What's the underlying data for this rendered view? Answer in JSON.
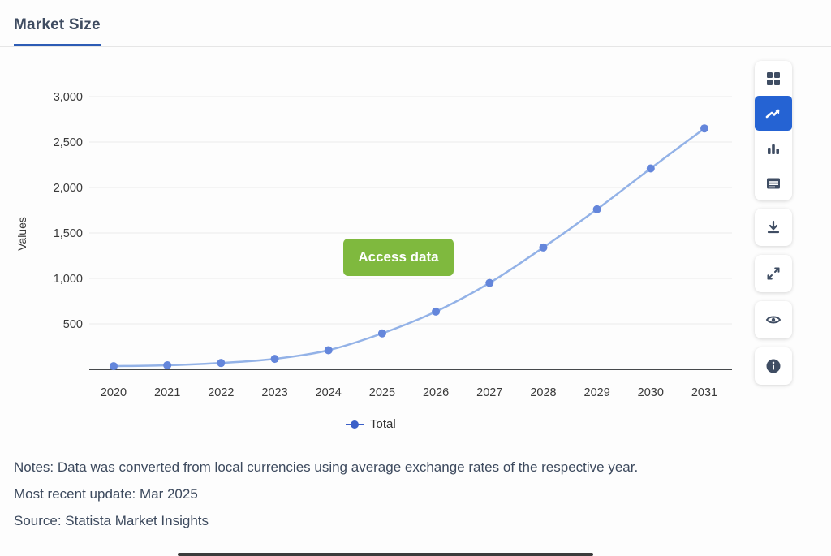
{
  "tab": {
    "label": "Market Size"
  },
  "chart_data": {
    "type": "line",
    "x": [
      2020,
      2021,
      2022,
      2023,
      2024,
      2025,
      2026,
      2027,
      2028,
      2029,
      2030,
      2031
    ],
    "series": [
      {
        "name": "Total",
        "values": [
          35,
          45,
          70,
          115,
          210,
          395,
          635,
          950,
          1340,
          1760,
          2210,
          2650
        ]
      }
    ],
    "ylabel": "Values",
    "yticks": [
      500,
      1000,
      1500,
      2000,
      2500,
      3000
    ],
    "ylim": [
      0,
      3100
    ],
    "grid": true,
    "legend_position": "bottom",
    "colors": {
      "line": "#93b2e7",
      "marker": "#6486db",
      "grid": "#ececec",
      "axis": "#46494c",
      "tick_text": "#3a3a3a"
    }
  },
  "overlay": {
    "access_button_label": "Access data",
    "access_button_color": "#7fb93e"
  },
  "legend": {
    "items": [
      {
        "label": "Total",
        "color": "#3a5fc8"
      }
    ]
  },
  "toolbar": {
    "view_icons": [
      "grid-view-icon",
      "line-chart-icon",
      "bar-chart-icon",
      "table-view-icon"
    ],
    "selected_index": 1,
    "selected_color": "#2563d3",
    "action_icons": [
      "download-icon",
      "expand-icon",
      "eye-icon",
      "info-icon"
    ],
    "icon_color": "#3f4d63"
  },
  "notes": {
    "lines": [
      "Notes: Data was converted from local currencies using average exchange rates of the respective year.",
      "Most recent update: Mar 2025",
      "Source: Statista Market Insights"
    ]
  },
  "accent_colors": {
    "tab_underline": "#2d5cb5"
  }
}
